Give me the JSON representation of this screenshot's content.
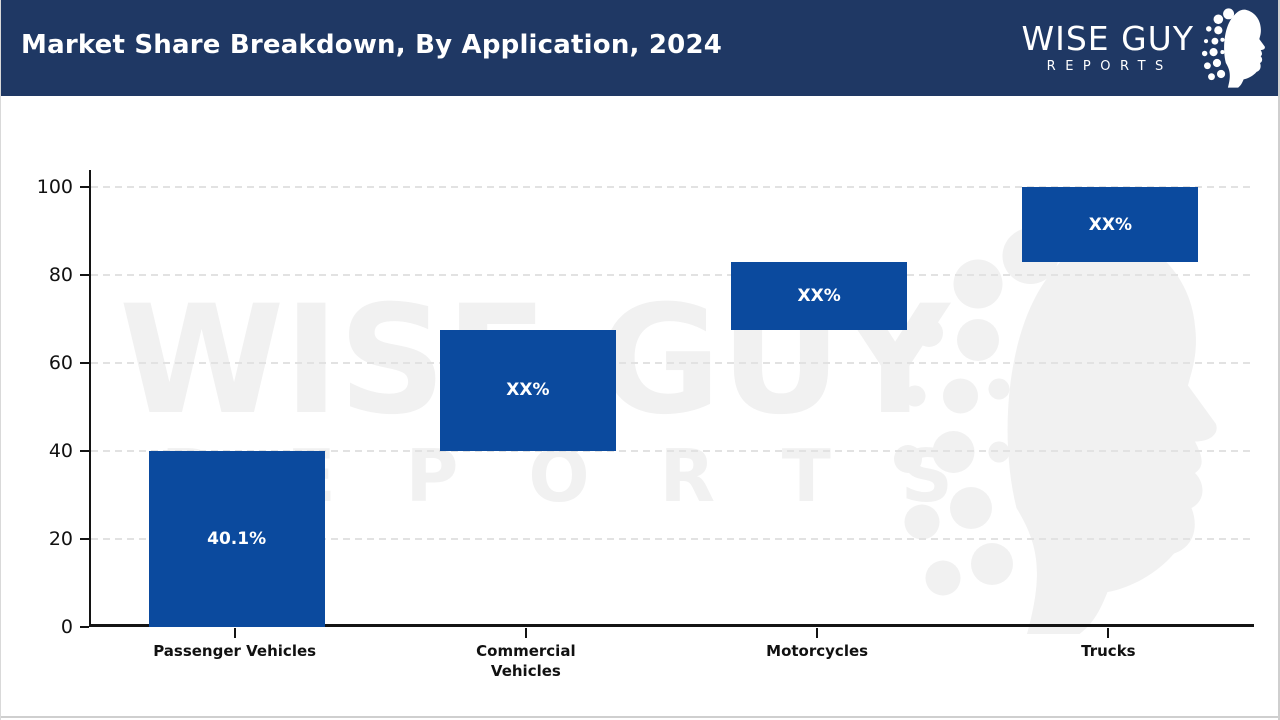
{
  "header": {
    "title": "Market Share Breakdown, By Application, 2024",
    "logo": {
      "line1": "WISE GUY",
      "line2": "REPORTS"
    }
  },
  "watermark": {
    "line1": "WISE GUY",
    "line2": "REPORTS"
  },
  "colors": {
    "header_bg": "#1f3864",
    "bar": "#0b4a9e",
    "grid": "#e2e2e2",
    "axis": "#141414",
    "watermark": "#f1f1f1",
    "bar_label": "#ffffff"
  },
  "chart_data": {
    "type": "bar",
    "subtype": "waterfall",
    "title": "Market Share Breakdown, By Application, 2024",
    "categories": [
      "Passenger Vehicles",
      "Commercial\nVehicles",
      "Motorcycles",
      "Trucks"
    ],
    "segments": [
      {
        "category": "Passenger Vehicles",
        "label": "40.1%",
        "start": 0,
        "end": 40.1
      },
      {
        "category": "Commercial Vehicles",
        "label": "XX%",
        "start": 40.1,
        "end": 67.6
      },
      {
        "category": "Motorcycles",
        "label": "XX%",
        "start": 67.6,
        "end": 82.9
      },
      {
        "category": "Trucks",
        "label": "XX%",
        "start": 82.9,
        "end": 100
      }
    ],
    "yticks": [
      0,
      20,
      40,
      60,
      80,
      100
    ],
    "ylim": [
      0,
      100
    ],
    "grid": "horizontal-dashed",
    "legend": "none",
    "xlabel": "",
    "ylabel": ""
  }
}
